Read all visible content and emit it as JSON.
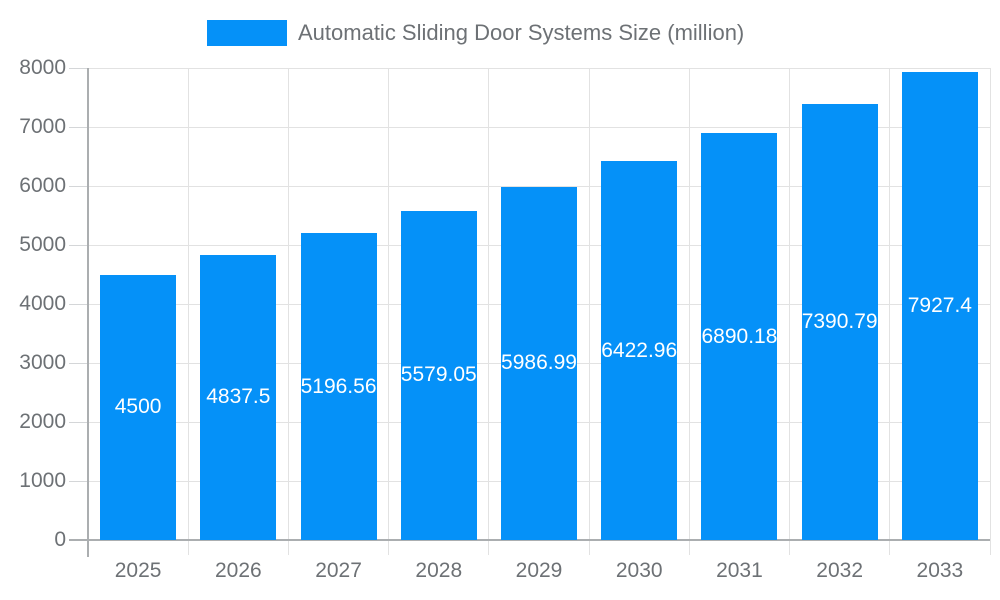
{
  "legend": {
    "label": "Automatic Sliding Door Systems Size (million)"
  },
  "chart_data": {
    "type": "bar",
    "title": "Automatic Sliding Door Systems Size (million)",
    "xlabel": "",
    "ylabel": "",
    "categories": [
      "2025",
      "2026",
      "2027",
      "2028",
      "2029",
      "2030",
      "2031",
      "2032",
      "2033"
    ],
    "values": [
      4500,
      4837.5,
      5196.56,
      5579.05,
      5986.99,
      6422.96,
      6890.18,
      7390.79,
      7927.4
    ],
    "bar_labels": [
      "4500",
      "4837.5",
      "5196.56",
      "5579.05",
      "5986.99",
      "6422.96",
      "6890.18",
      "7390.79",
      "7927.4"
    ],
    "ylim": [
      0,
      8000
    ],
    "yticks": [
      0,
      1000,
      2000,
      3000,
      4000,
      5000,
      6000,
      7000,
      8000
    ],
    "ytick_labels": [
      "0",
      "1000",
      "2000",
      "3000",
      "4000",
      "5000",
      "6000",
      "7000",
      "8000"
    ],
    "grid": "on",
    "legend_position": "top",
    "bar_value_labels_inside": true,
    "colors": {
      "bar": "#0591f8",
      "bar_label_text": "#ffffff",
      "axis_text": "#6d7175",
      "legend_text": "#6d7175",
      "axis_line": "#abaeb0",
      "gridline": "#e2e2e2",
      "tick": "#d4d6d8",
      "background": "#ffffff"
    }
  }
}
